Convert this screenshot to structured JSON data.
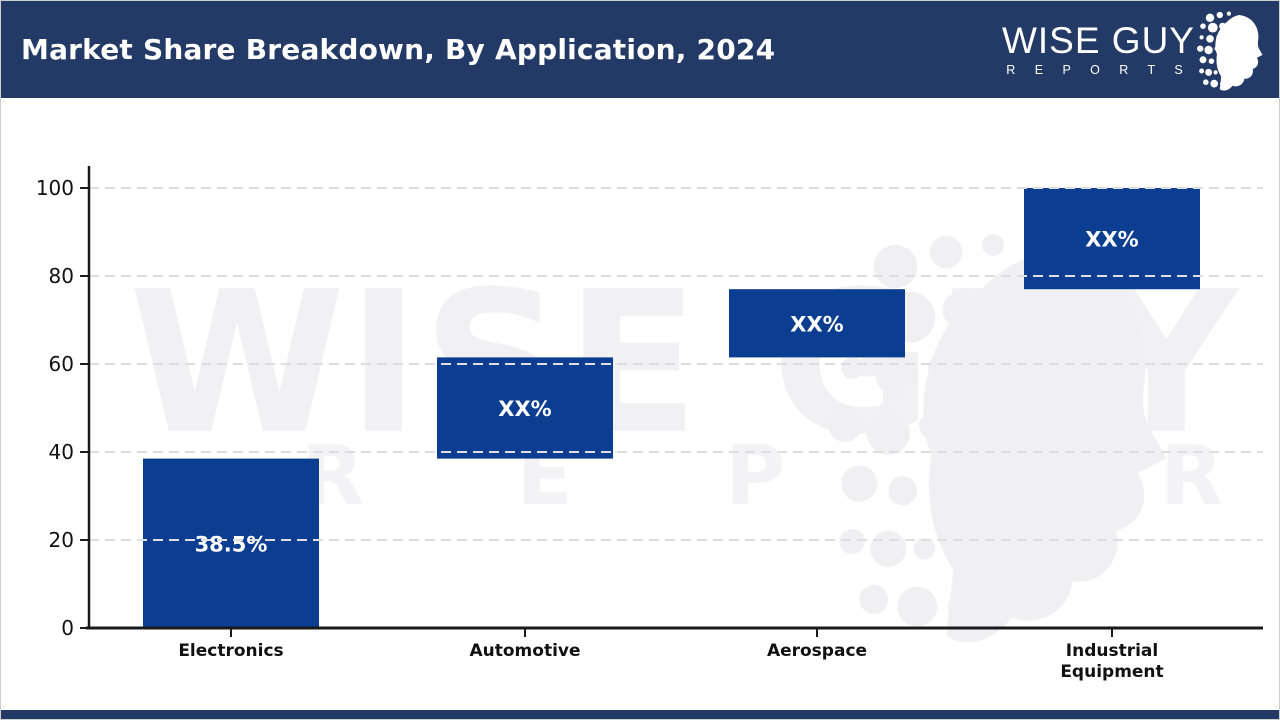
{
  "header": {
    "title": "Market Share Breakdown, By Application, 2024",
    "logo": {
      "wordmark": "WISE GUY",
      "subtext": "R E P O R T S"
    }
  },
  "watermark": {
    "wordmark": "WISE GUY",
    "subtext": "R E P O R T S"
  },
  "chart_data": {
    "type": "bar",
    "subtype": "waterfall",
    "title": "Market Share Breakdown, By Application, 2024",
    "categories": [
      "Electronics",
      "Automotive",
      "Aerospace",
      "Industrial Equipment"
    ],
    "categories_lines": [
      [
        "Electronics"
      ],
      [
        "Automotive"
      ],
      [
        "Aerospace"
      ],
      [
        "Industrial",
        "Equipment"
      ]
    ],
    "values": [
      38.5,
      23,
      15.5,
      23
    ],
    "segments": [
      [
        0,
        38.5
      ],
      [
        38.5,
        61.5
      ],
      [
        61.5,
        77
      ],
      [
        77,
        100
      ]
    ],
    "bar_labels": [
      "38.5%",
      "XX%",
      "XX%",
      "XX%"
    ],
    "xlabel": "",
    "ylabel": "",
    "ylim": [
      0,
      100
    ],
    "yticks": [
      0,
      20,
      40,
      60,
      80,
      100
    ],
    "grid": "dashed-horizontal",
    "legend": "none"
  },
  "colors": {
    "header_bg": "#233A66",
    "footer_bg": "#233A66",
    "bar": "#0B3D91",
    "grid": "#DEDEDE",
    "axis": "#1A1A1A",
    "bar_label_text": "#FFFFFF",
    "watermark": "#F1F1F4"
  }
}
